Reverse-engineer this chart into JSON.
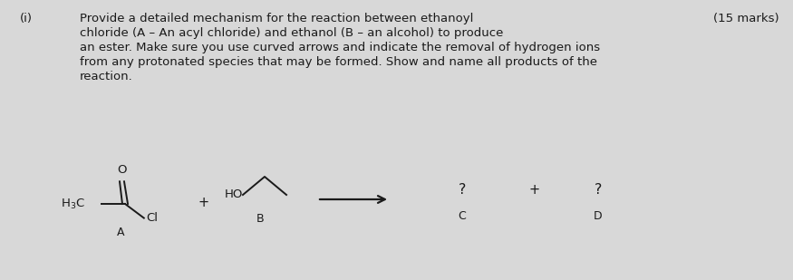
{
  "bg_color": "#d8d8d8",
  "title_marks": "(15 marks)",
  "question_number": "(i)",
  "line1": "Provide a detailed mechanism for the reaction between ethanoyl",
  "line2": "chloride (A – An acyl chloride) and ethanol (B – an alcohol) to produce",
  "line3": "an ester. Make sure you use curved arrows and indicate the removal of hydrogen ions",
  "line4": "from any protonated species that may be formed. Show and name all products of the",
  "line5": "reaction.",
  "label_A": "A",
  "label_B": "B",
  "label_C": "C",
  "label_D": "D",
  "font_size_text": 9.5,
  "font_size_small": 9.0,
  "text_color": "#1a1a1a"
}
